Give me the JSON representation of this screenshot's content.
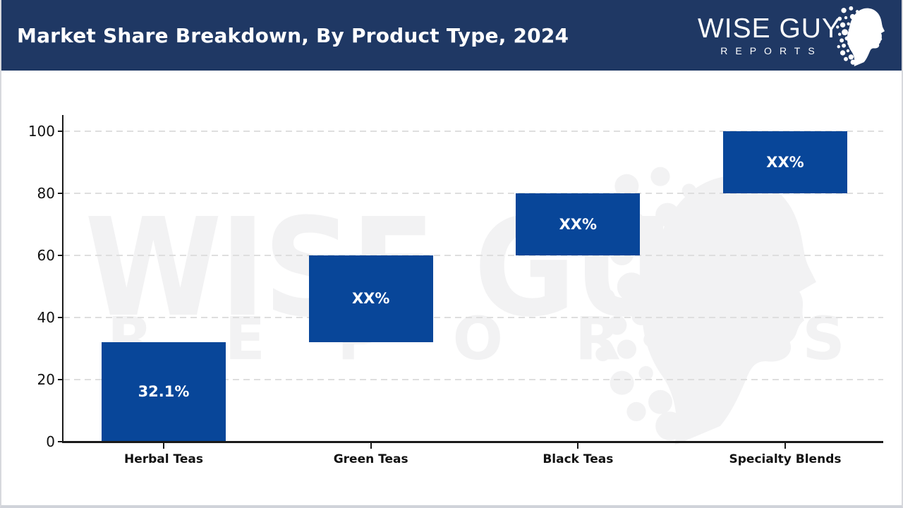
{
  "header": {
    "title": "Market Share Breakdown, By Product Type, 2024",
    "logo": {
      "line1": "WISE GUY",
      "line2": "REPORTS"
    }
  },
  "watermark": {
    "line1": "WISE GUY",
    "line2": "REPORTS"
  },
  "colors": {
    "header_bg": "#1f3864",
    "bar": "#084699",
    "grid": "#dedede",
    "axis": "#1a1a1a",
    "watermark": "#f2f2f3",
    "bar_label": "#ffffff"
  },
  "chart_data": {
    "type": "bar",
    "subtype": "waterfall",
    "title": "Market Share Breakdown, By Product Type, 2024",
    "categories": [
      "Herbal Teas",
      "Green Teas",
      "Black Teas",
      "Specialty Blends"
    ],
    "segments": [
      {
        "category": "Herbal Teas",
        "start": 0,
        "end": 32.1,
        "label": "32.1%"
      },
      {
        "category": "Green Teas",
        "start": 32.1,
        "end": 60,
        "label": "XX%"
      },
      {
        "category": "Black Teas",
        "start": 60,
        "end": 80,
        "label": "XX%"
      },
      {
        "category": "Specialty Blends",
        "start": 80,
        "end": 100,
        "label": "XX%"
      }
    ],
    "yticks": [
      0,
      20,
      40,
      60,
      80,
      100
    ],
    "ylim": [
      0,
      105
    ],
    "xlabel": "",
    "ylabel": "",
    "legend": false,
    "grid": "horizontal-dashed"
  }
}
